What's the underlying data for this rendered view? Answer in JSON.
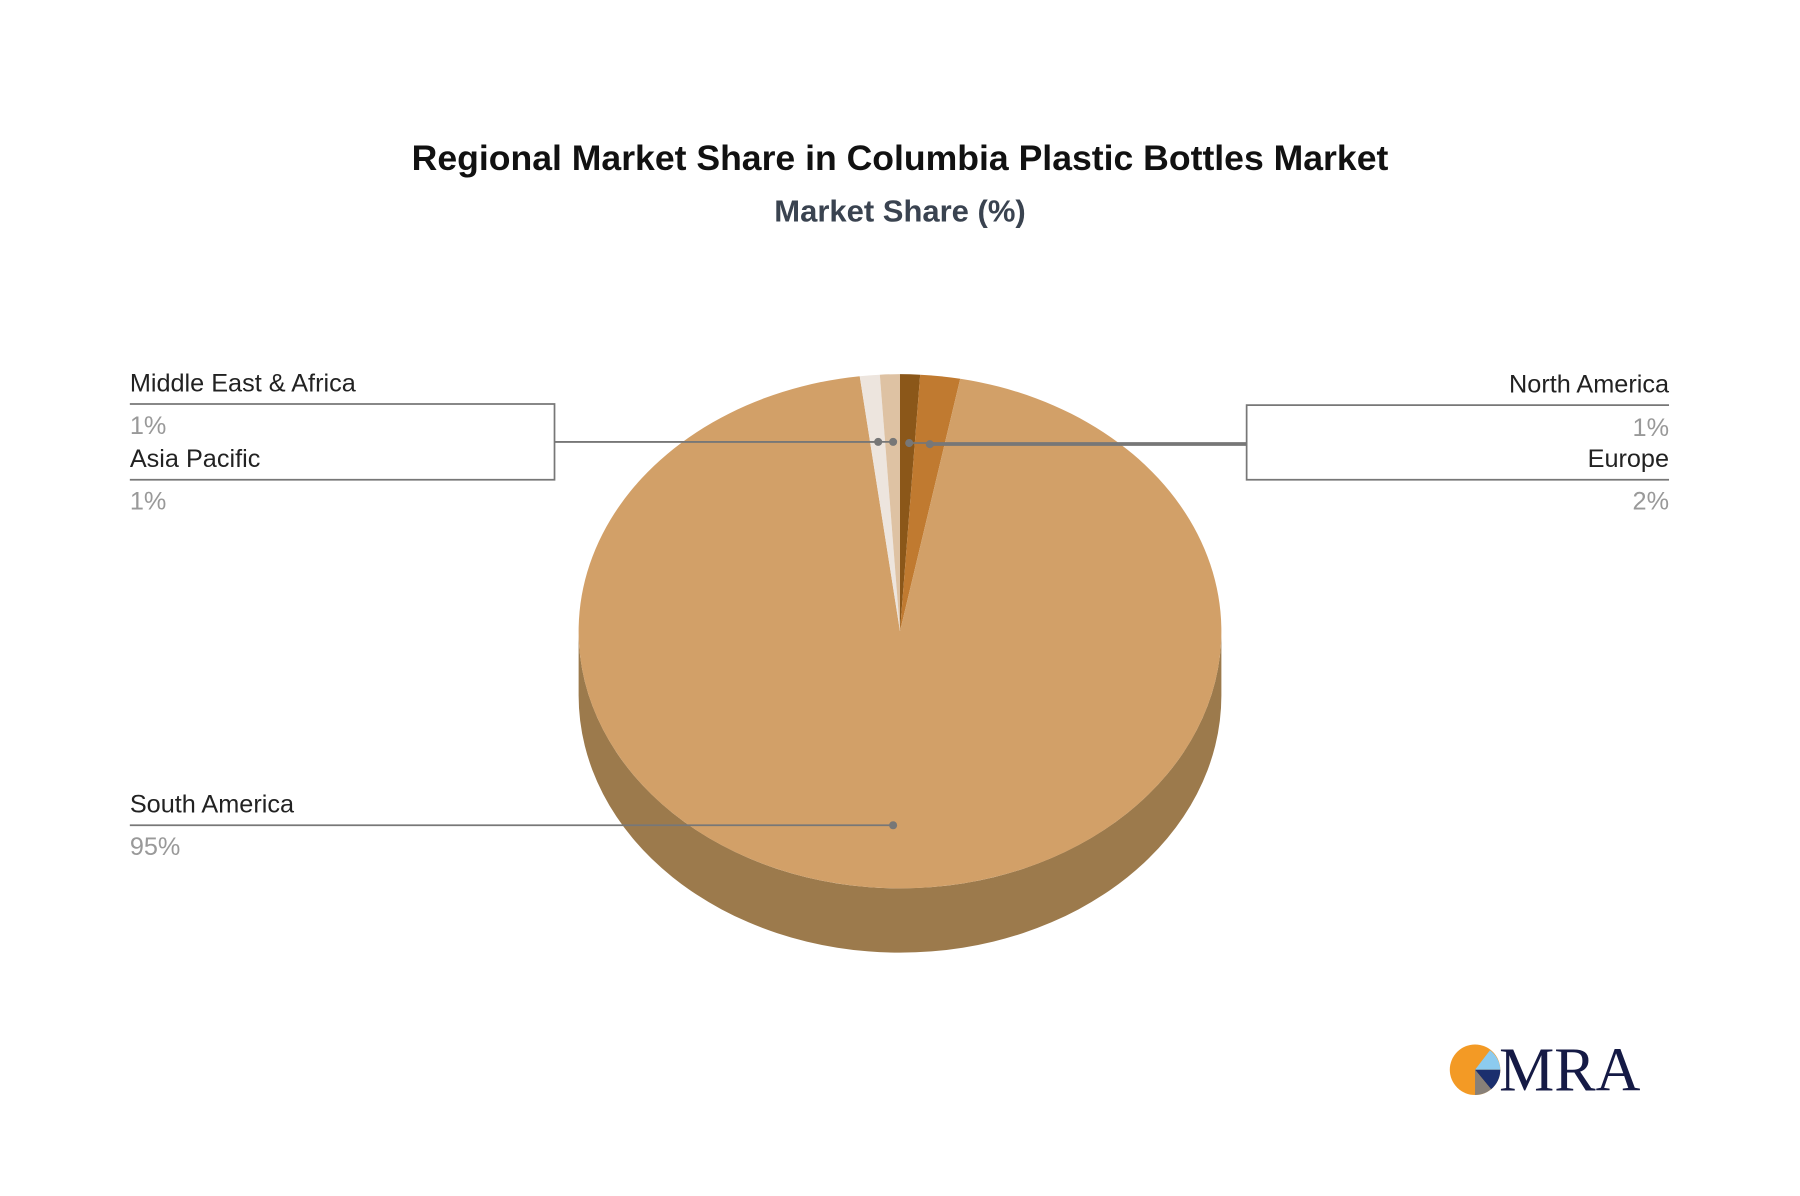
{
  "chart_data": {
    "type": "pie",
    "style": "3d",
    "title": "Regional Market Share in Columbia Plastic Bottles Market",
    "subtitle": "Market Share (%)",
    "slices": [
      {
        "label": "North America",
        "value": 1,
        "display": "1%",
        "color": "#8B5719"
      },
      {
        "label": "Europe",
        "value": 2,
        "display": "2%",
        "color": "#C07A30"
      },
      {
        "label": "South America",
        "value": 95,
        "display": "95%",
        "color": "#D2A068"
      },
      {
        "label": "Asia Pacific",
        "value": 1,
        "display": "1%",
        "color": "#EDE5DE"
      },
      {
        "label": "Middle East & Africa",
        "value": 1,
        "display": "1%",
        "color": "#DEC2A3"
      }
    ],
    "side_color": "#9C7A4C"
  },
  "logo": {
    "text": "MRA"
  }
}
